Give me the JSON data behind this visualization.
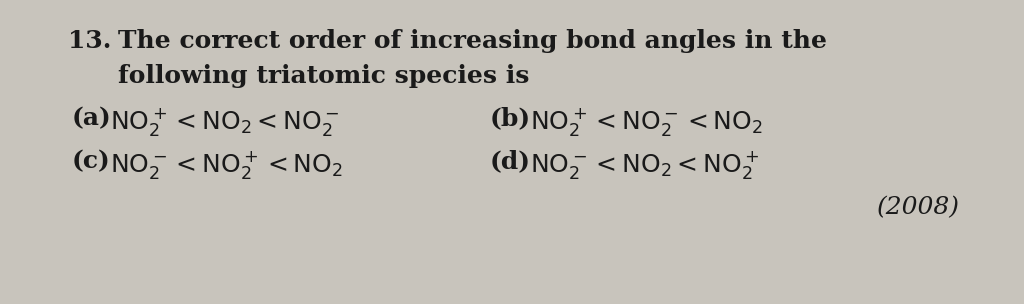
{
  "background_color": "#c8c4bc",
  "text_color": "#1a1a1a",
  "question_number": "13.",
  "line1": "The correct order of increasing bond angles in the",
  "line2": "following triatomic species is",
  "option_a_label": "(a)",
  "option_a": "$\\mathrm{NO_2^+} < \\mathrm{NO_2} < \\mathrm{NO_2^-}$",
  "option_b_label": "(b)",
  "option_b": "$\\mathrm{NO_2^+} < \\mathrm{NO_2^-} < \\mathrm{NO_2}$",
  "option_c_label": "(c)",
  "option_c": "$\\mathrm{NO_2^-} < \\mathrm{NO_2^+} < \\mathrm{NO_2}$",
  "option_d_label": "(d)",
  "option_d": "$\\mathrm{NO_2^-} < \\mathrm{NO_2} < \\mathrm{NO_2^+}$",
  "year": "(2008)",
  "fontsize_main": 18,
  "fontsize_options": 18
}
